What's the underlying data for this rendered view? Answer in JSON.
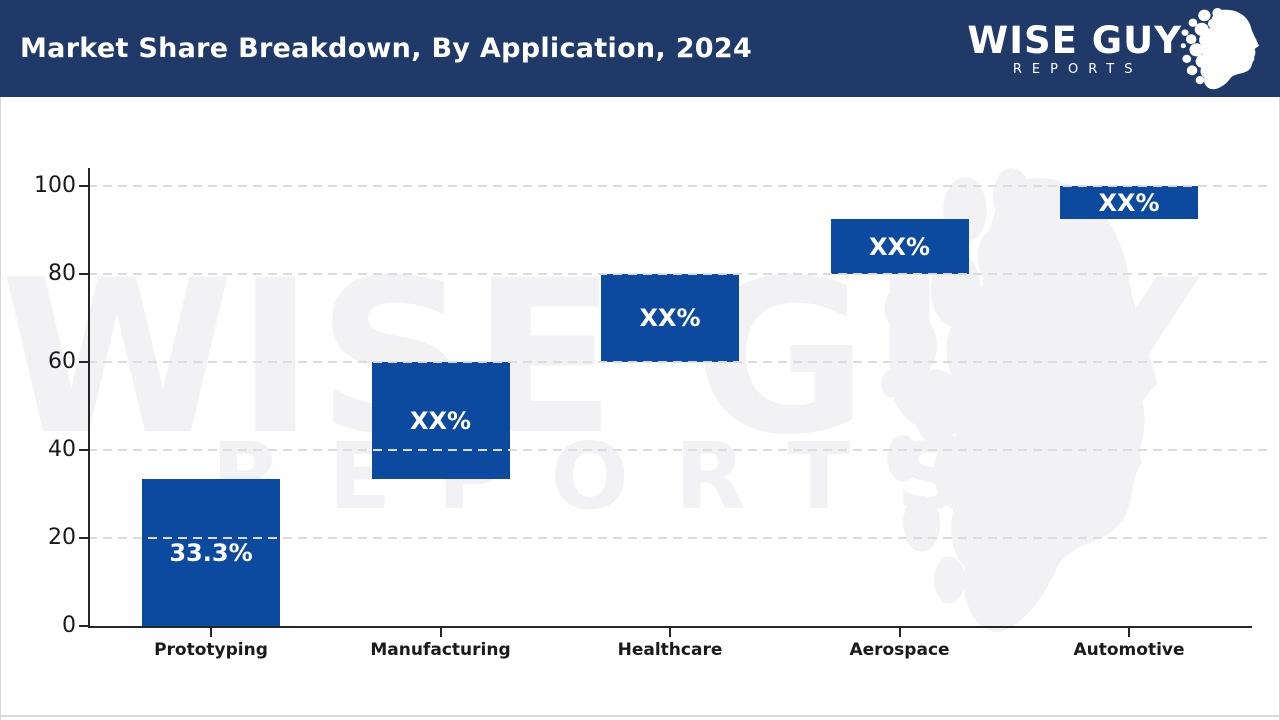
{
  "header": {
    "title": "Market Share Breakdown, By Application, 2024",
    "brand": {
      "line1": "WISE GUY",
      "line2": "REPORTS"
    }
  },
  "watermark": {
    "line1": "WISE GUY",
    "line2": "REPORTS"
  },
  "colors": {
    "header_bg": "#1f3a68",
    "bar": "#0b4a9e",
    "grid": "#dcdcdc",
    "axis": "#262626",
    "bar_label": "#ffffff",
    "watermark": "#f2f2f5"
  },
  "chart_data": {
    "type": "bar",
    "subtype": "waterfall",
    "title": "Market Share Breakdown, By Application, 2024",
    "categories": [
      "Prototyping",
      "Manufacturing",
      "Healthcare",
      "Aerospace",
      "Automotive"
    ],
    "segments": [
      {
        "category": "Prototyping",
        "start": 0,
        "end": 33.3,
        "label": "33.3%"
      },
      {
        "category": "Manufacturing",
        "start": 33.3,
        "end": 60,
        "label": "XX%"
      },
      {
        "category": "Healthcare",
        "start": 60,
        "end": 80,
        "label": "XX%"
      },
      {
        "category": "Aerospace",
        "start": 80,
        "end": 92.5,
        "label": "XX%"
      },
      {
        "category": "Automotive",
        "start": 92.5,
        "end": 100,
        "label": "XX%"
      }
    ],
    "yticks": [
      0,
      20,
      40,
      60,
      80,
      100
    ],
    "ylim": [
      0,
      105
    ],
    "xlabel": "",
    "ylabel": "",
    "grid": true,
    "grid_style": "dashed",
    "legend": false
  }
}
